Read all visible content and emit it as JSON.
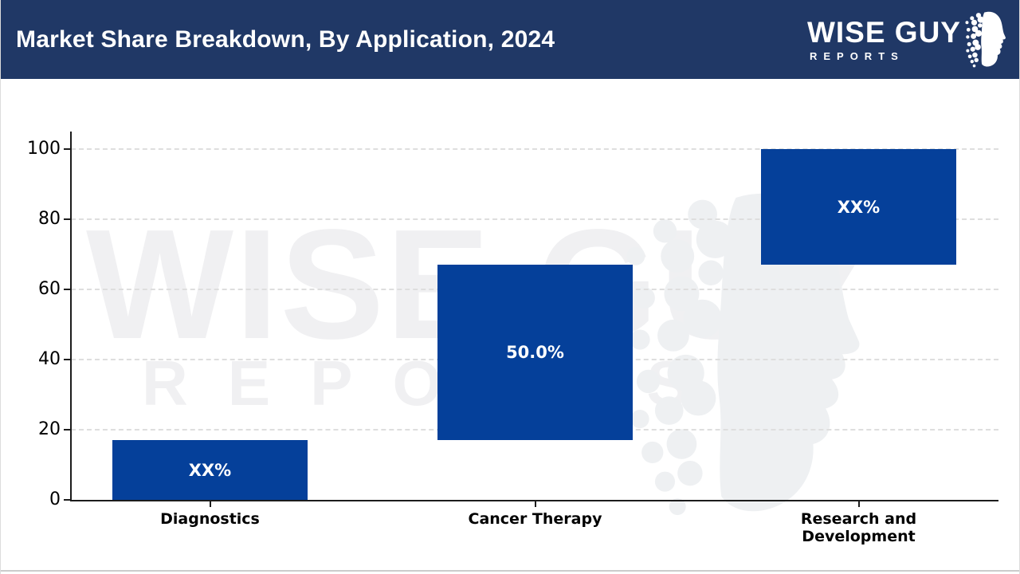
{
  "header": {
    "title": "Market Share Breakdown, By Application, 2024",
    "logo": {
      "line1": "WISE GUY",
      "line2": "REPORTS"
    }
  },
  "watermark": {
    "line1": "WISE GUY",
    "line2": "REPORTS"
  },
  "chart_data": {
    "type": "bar",
    "subtype": "waterfall-floating-bars",
    "title": "Market Share Breakdown, By Application, 2024",
    "categories": [
      "Diagnostics",
      "Cancer Therapy",
      "Research and Development"
    ],
    "bars": [
      {
        "category": "Diagnostics",
        "label": "XX%",
        "start": 0,
        "end": 17
      },
      {
        "category": "Cancer Therapy",
        "label": "50.0%",
        "start": 17,
        "end": 67
      },
      {
        "category": "Research and Development",
        "label": "XX%",
        "start": 67,
        "end": 100
      }
    ],
    "yticks": [
      0,
      20,
      40,
      60,
      80,
      100
    ],
    "ylim": [
      0,
      105
    ],
    "xlabel": "",
    "ylabel": "",
    "grid": "horizontal-dashed",
    "legend": "none",
    "bar_color": "#05409a"
  },
  "colors": {
    "header_bg": "#203866",
    "bar": "#05409a",
    "grid": "#dedede",
    "axis": "#1c1c1c",
    "watermark": "#f0f0f2"
  }
}
